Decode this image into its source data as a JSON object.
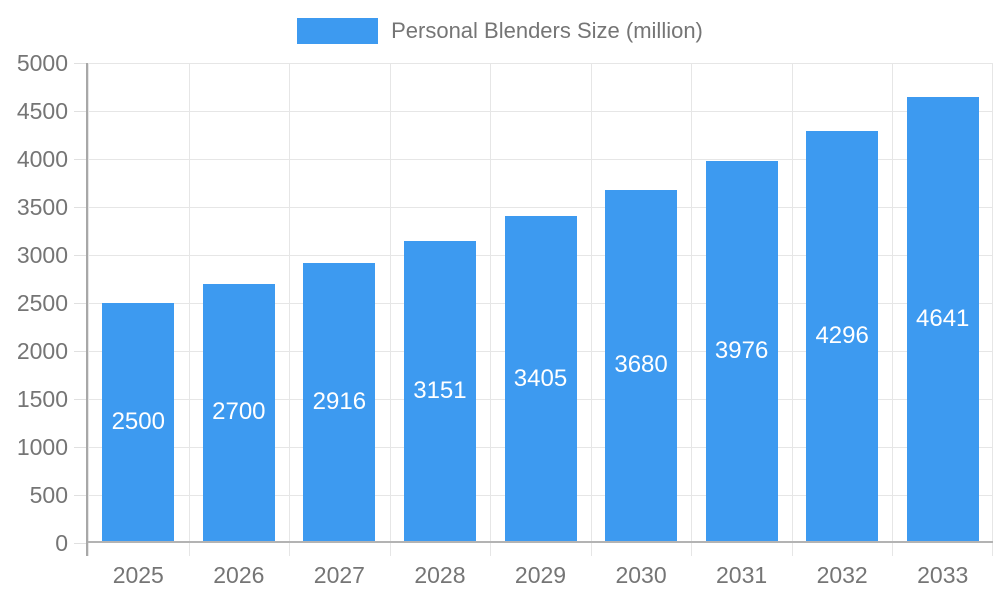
{
  "legend": {
    "title": "Personal Blenders Size (million)"
  },
  "colors": {
    "bar": "#3D9AF0",
    "grid": "#e6e6e6",
    "axis": "#a8a8a8",
    "text": "#757575",
    "bar_label": "#ffffff",
    "background": "#ffffff"
  },
  "chart_data": {
    "type": "bar",
    "title": "Personal Blenders Size (million)",
    "series": [
      {
        "name": "Personal Blenders Size (million)",
        "values": [
          2500,
          2700,
          2916,
          3151,
          3405,
          3680,
          3976,
          4296,
          4641
        ]
      }
    ],
    "categories": [
      "2025",
      "2026",
      "2027",
      "2028",
      "2029",
      "2030",
      "2031",
      "2032",
      "2033"
    ],
    "bar_value_labels": [
      "2500",
      "2700",
      "2916",
      "3151",
      "3405",
      "3680",
      "3976",
      "4296",
      "4641"
    ],
    "xlabel": "",
    "ylabel": "",
    "ylim": [
      0,
      5000
    ],
    "ytick_step": 500,
    "ytick_labels": [
      "0",
      "500",
      "1000",
      "1500",
      "2000",
      "2500",
      "3000",
      "3500",
      "4000",
      "4500",
      "5000"
    ],
    "grid": true,
    "legend_position": "top",
    "value_labels_inside_bars": true
  }
}
